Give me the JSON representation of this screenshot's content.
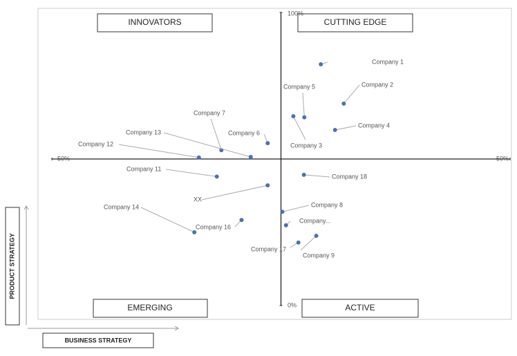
{
  "chart_data": {
    "type": "scatter",
    "xlabel": "BUSINESS STRATEGY",
    "ylabel": "PRODUCT STRATEGY",
    "quadrants": [
      "INNOVATORS",
      "CUTTING EDGE",
      "EMERGING",
      "ACTIVE"
    ],
    "xlim": [
      -50,
      50
    ],
    "ylim": [
      0,
      100
    ],
    "xticks": [
      {
        "value": -50,
        "label": "50%"
      },
      {
        "value": 50,
        "label": "50%"
      }
    ],
    "yticks": [
      {
        "value": 0,
        "label": "0%"
      },
      {
        "value": 100,
        "label": "100%"
      }
    ],
    "color": "#4a72b0",
    "labels": [
      "Company 1",
      "Company 2",
      "Company 5",
      "Company 3",
      "Company 4",
      "Company 6",
      "Company 7",
      "Company 13",
      "Company 12",
      "Company 11",
      "Company 18",
      "XX",
      "Company 8",
      "Company 14",
      "Company 16",
      "Company...",
      "Company 17",
      "Company 9"
    ],
    "x": [
      8.7,
      13.7,
      5.1,
      2.7,
      11.8,
      -2.9,
      -13,
      -6.6,
      -17.9,
      -14,
      5,
      -2.9,
      0.3,
      -18.9,
      -8.6,
      1.1,
      3.8,
      7.7
    ],
    "values": [
      82.3,
      68.9,
      64.2,
      64.6,
      59.9,
      55.4,
      53,
      50.7,
      50.5,
      44,
      44.6,
      41,
      32,
      25,
      29.2,
      27.4,
      21.5,
      23.8
    ]
  }
}
